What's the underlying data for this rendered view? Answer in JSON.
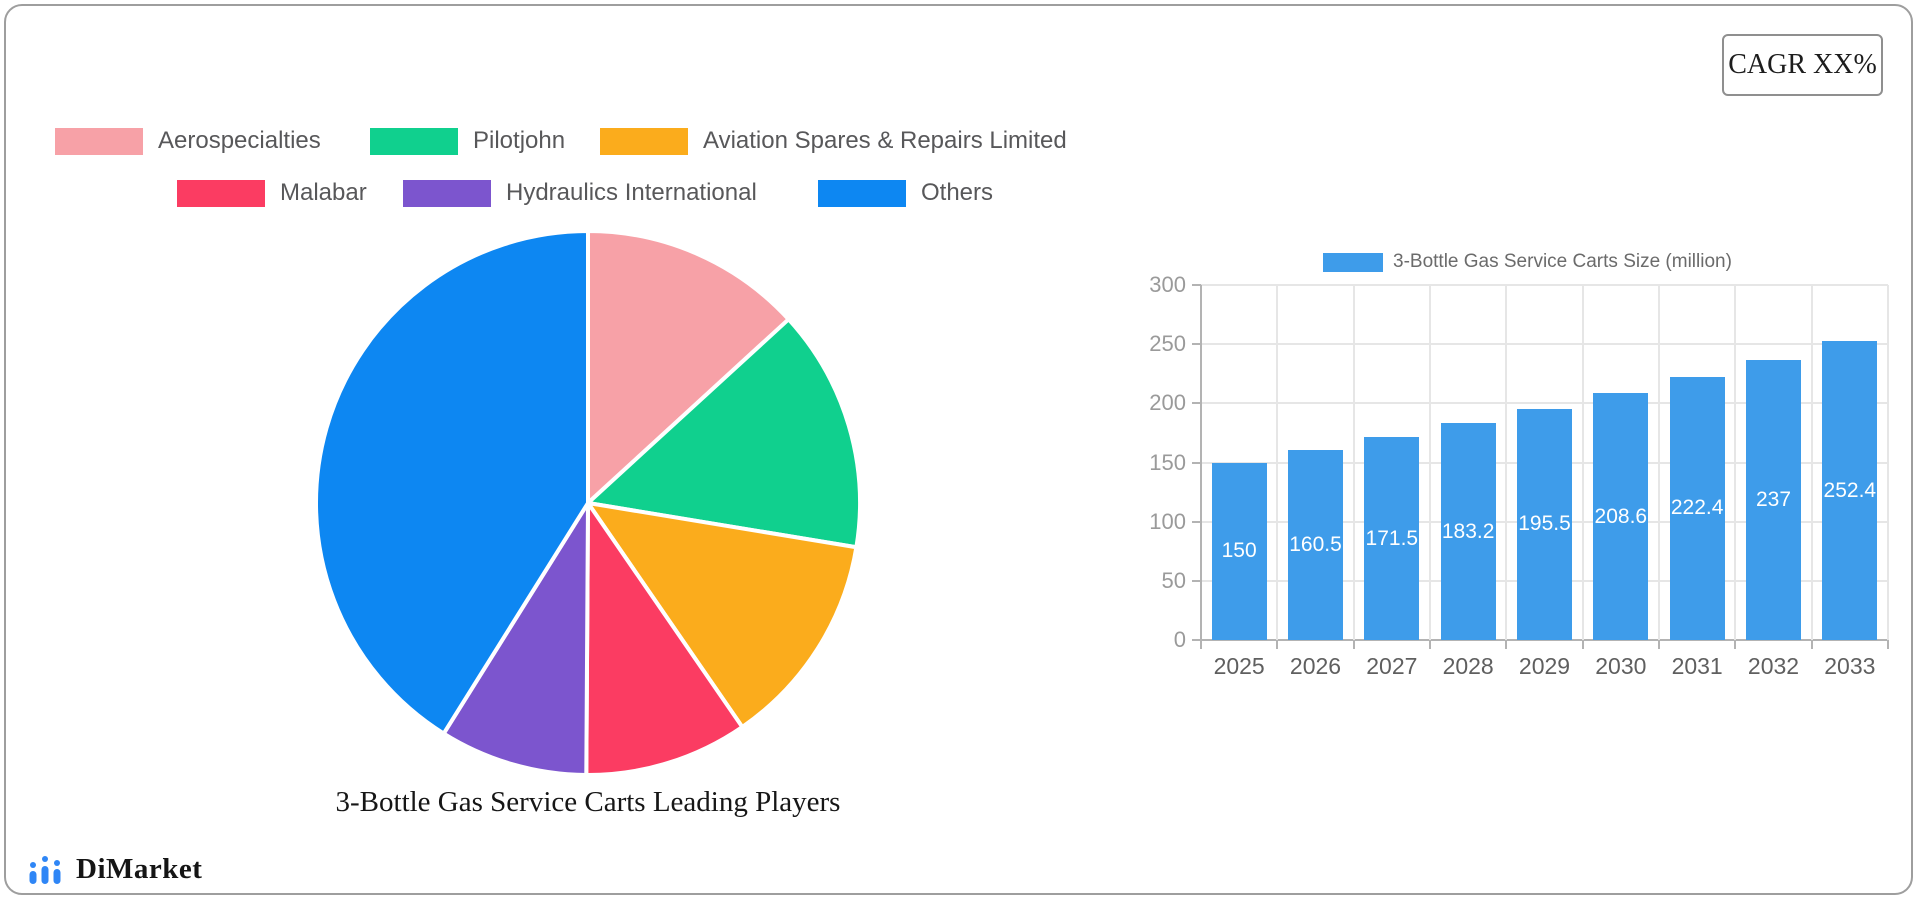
{
  "card": {
    "cagr_label": "CAGR XX%"
  },
  "brand": {
    "name": "DiMarket",
    "icon": "bar-chart-logo-icon",
    "icon_color": "#2f86f6"
  },
  "chart_data": [
    {
      "type": "pie",
      "title": "3-Bottle Gas Service Carts Leading Players",
      "labels": [
        "Aerospecialties",
        "Pilotjohn",
        "Aviation Spares & Repairs Limited",
        "Malabar",
        "Hydraulics International",
        "Others"
      ],
      "values": [
        13.2,
        14.4,
        12.8,
        9.7,
        8.8,
        41.1
      ],
      "colors": [
        "#F7A1A7",
        "#10D08E",
        "#FBAC1C",
        "#FB3C62",
        "#7C55CE",
        "#0D87F2"
      ],
      "legend_position": "top",
      "slice_border_color": "#ffffff"
    },
    {
      "type": "bar",
      "categories": [
        "2025",
        "2026",
        "2027",
        "2028",
        "2029",
        "2030",
        "2031",
        "2032",
        "2033"
      ],
      "series": [
        {
          "name": "3-Bottle Gas Service Carts Size (million)",
          "values": [
            150,
            160.5,
            171.5,
            183.2,
            195.5,
            208.6,
            222.4,
            237,
            252.4
          ]
        }
      ],
      "ylim": [
        0,
        300
      ],
      "ytick_step": 50,
      "bar_color": "#3E9CEA",
      "grid": true,
      "legend_position": "top",
      "value_label_color": "#ffffff"
    }
  ]
}
